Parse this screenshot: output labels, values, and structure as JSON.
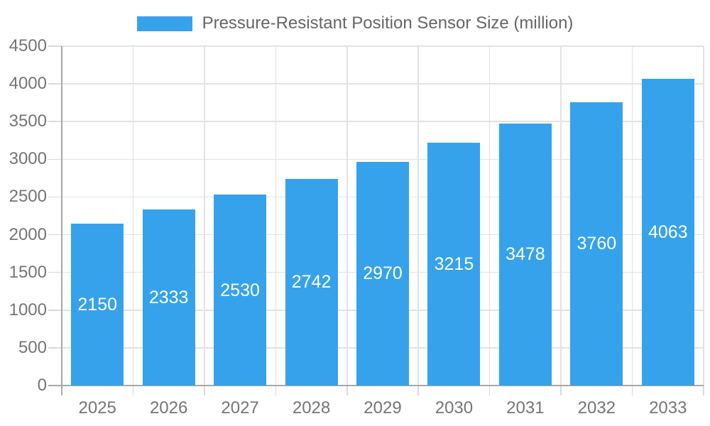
{
  "legend": {
    "label": "Pressure-Resistant Position Sensor Size (million)"
  },
  "chart_data": {
    "type": "bar",
    "title": "Pressure-Resistant Position Sensor Size (million)",
    "categories": [
      "2025",
      "2026",
      "2027",
      "2028",
      "2029",
      "2030",
      "2031",
      "2032",
      "2033"
    ],
    "series": [
      {
        "name": "Pressure-Resistant Position Sensor Size (million)",
        "values": [
          2150,
          2333,
          2530,
          2742,
          2970,
          3215,
          3478,
          3760,
          4063
        ]
      }
    ],
    "xlabel": "",
    "ylabel": "",
    "ylim": [
      0,
      4500
    ],
    "ytick_step": 500,
    "grid": true,
    "legend_position": "top-center",
    "value_label_position": "inside-center",
    "colors": {
      "bar": "#36A2EB",
      "value_label": "#FFFFFF",
      "axis_text": "#757575",
      "legend_text": "#666666",
      "grid_line": "#E2E2E2",
      "tick_line": "#D9D9D9",
      "axis_line": "#A8A8A8",
      "background": "#FFFFFF"
    }
  }
}
